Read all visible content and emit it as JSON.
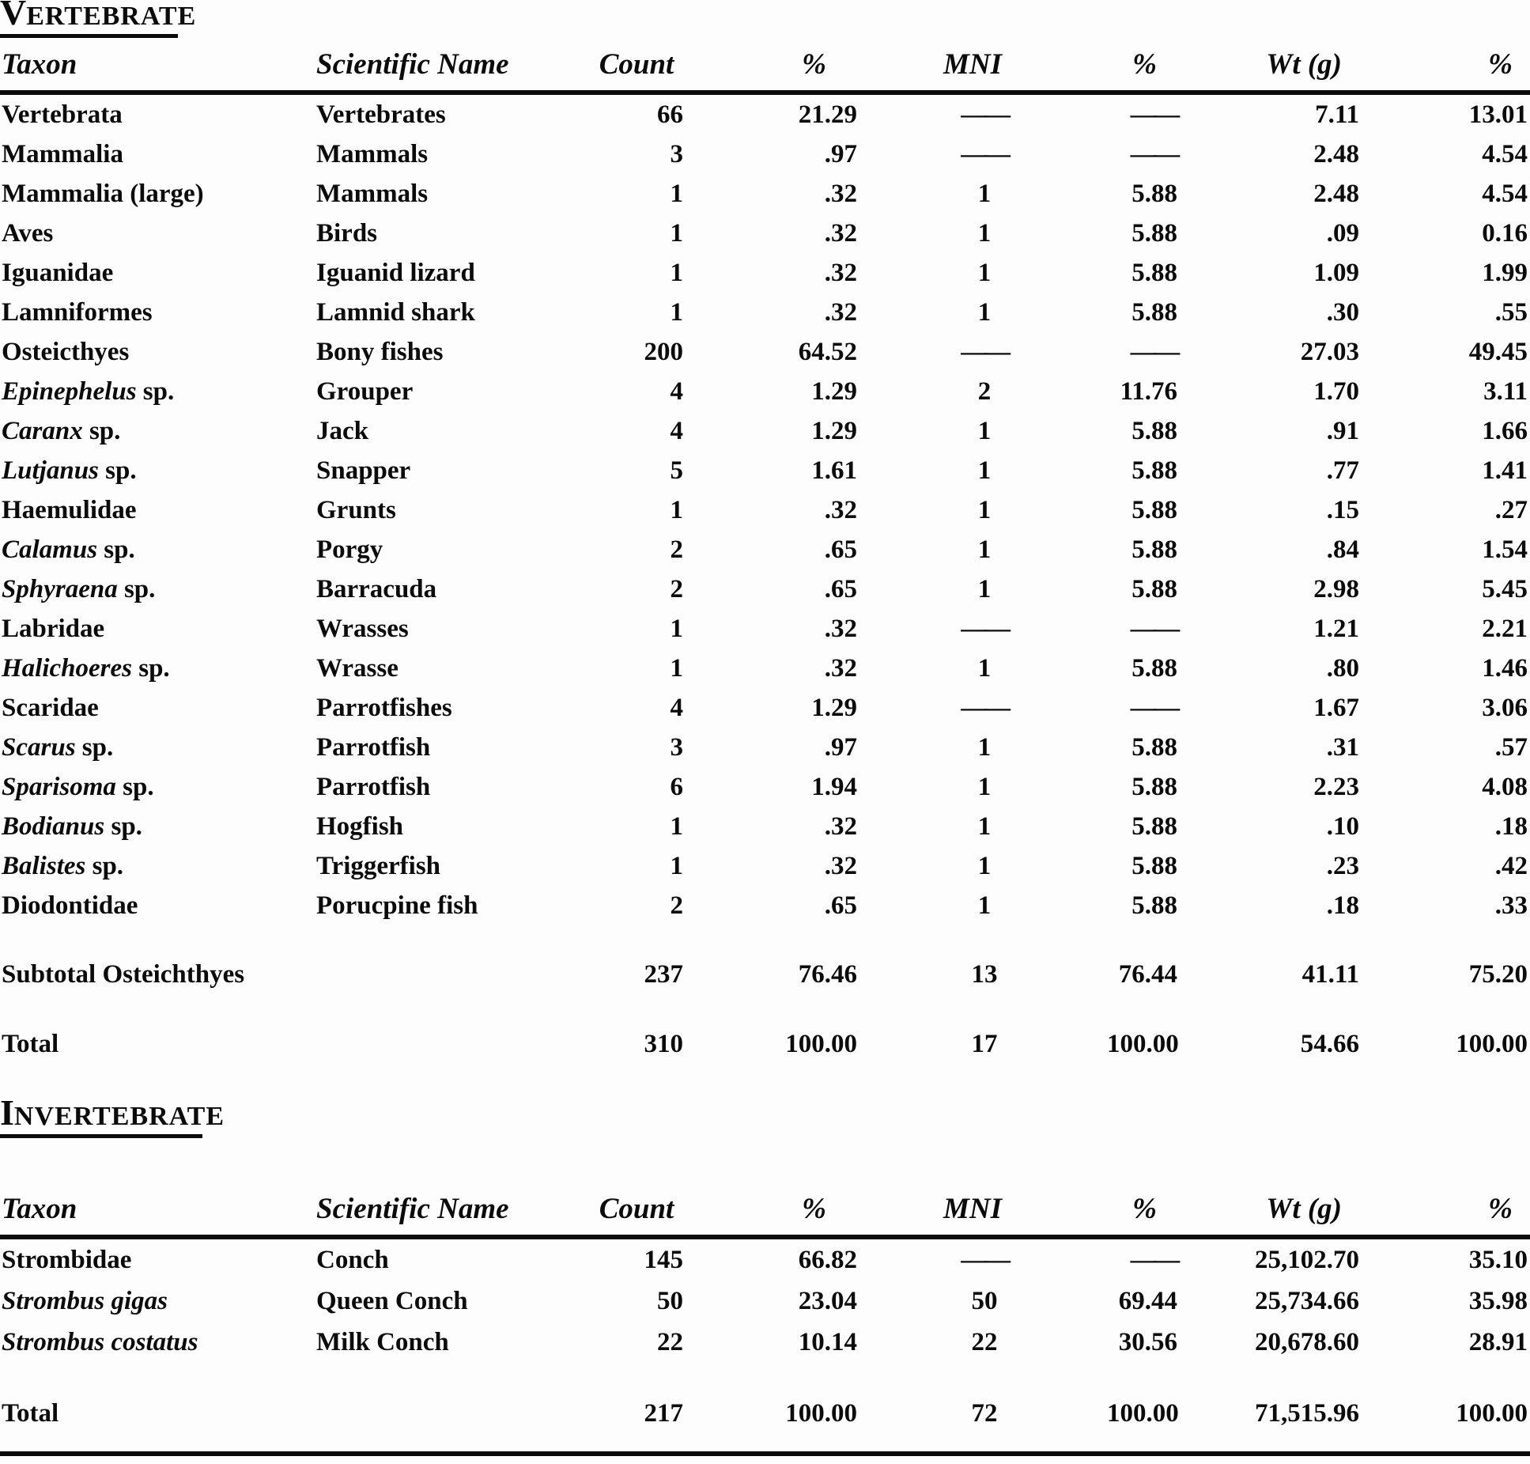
{
  "columns": [
    "Taxon",
    "Scientific Name",
    "Count",
    "%",
    "MNI",
    "%",
    "Wt (g)",
    "%"
  ],
  "vertebrate": {
    "title_first": "V",
    "title_rest": "ERTEBRATE",
    "rows": [
      {
        "taxon_i": "",
        "taxon_r": "Vertebrata",
        "sci": "Vertebrates",
        "count": "66",
        "pct_count": "21.29",
        "mni": "——",
        "pct_mni": "——",
        "wt": "7.11",
        "pct_wt": "13.01"
      },
      {
        "taxon_i": "",
        "taxon_r": "Mammalia",
        "sci": "Mammals",
        "count": "3",
        "pct_count": ".97",
        "mni": "——",
        "pct_mni": "——",
        "wt": "2.48",
        "pct_wt": "4.54"
      },
      {
        "taxon_i": "",
        "taxon_r": "Mammalia (large)",
        "sci": "Mammals",
        "count": "1",
        "pct_count": ".32",
        "mni": "1",
        "pct_mni": "5.88",
        "wt": "2.48",
        "pct_wt": "4.54"
      },
      {
        "taxon_i": "",
        "taxon_r": "Aves",
        "sci": "Birds",
        "count": "1",
        "pct_count": ".32",
        "mni": "1",
        "pct_mni": "5.88",
        "wt": ".09",
        "pct_wt": "0.16"
      },
      {
        "taxon_i": "",
        "taxon_r": "Iguanidae",
        "sci": "Iguanid lizard",
        "count": "1",
        "pct_count": ".32",
        "mni": "1",
        "pct_mni": "5.88",
        "wt": "1.09",
        "pct_wt": "1.99"
      },
      {
        "taxon_i": "",
        "taxon_r": "Lamniformes",
        "sci": "Lamnid shark",
        "count": "1",
        "pct_count": ".32",
        "mni": "1",
        "pct_mni": "5.88",
        "wt": ".30",
        "pct_wt": ".55"
      },
      {
        "taxon_i": "",
        "taxon_r": "Osteicthyes",
        "sci": "Bony fishes",
        "count": "200",
        "pct_count": "64.52",
        "mni": "——",
        "pct_mni": "——",
        "wt": "27.03",
        "pct_wt": "49.45"
      },
      {
        "taxon_i": "Epinephelus",
        "taxon_r": " sp.",
        "sci": "Grouper",
        "count": "4",
        "pct_count": "1.29",
        "mni": "2",
        "pct_mni": "11.76",
        "wt": "1.70",
        "pct_wt": "3.11"
      },
      {
        "taxon_i": "Caranx",
        "taxon_r": " sp.",
        "sci": "Jack",
        "count": "4",
        "pct_count": "1.29",
        "mni": "1",
        "pct_mni": "5.88",
        "wt": ".91",
        "pct_wt": "1.66"
      },
      {
        "taxon_i": "Lutjanus",
        "taxon_r": " sp.",
        "sci": "Snapper",
        "count": "5",
        "pct_count": "1.61",
        "mni": "1",
        "pct_mni": "5.88",
        "wt": ".77",
        "pct_wt": "1.41"
      },
      {
        "taxon_i": "",
        "taxon_r": "Haemulidae",
        "sci": "Grunts",
        "count": "1",
        "pct_count": ".32",
        "mni": "1",
        "pct_mni": "5.88",
        "wt": ".15",
        "pct_wt": ".27"
      },
      {
        "taxon_i": "Calamus",
        "taxon_r": " sp.",
        "sci": "Porgy",
        "count": "2",
        "pct_count": ".65",
        "mni": "1",
        "pct_mni": "5.88",
        "wt": ".84",
        "pct_wt": "1.54"
      },
      {
        "taxon_i": "Sphyraena",
        "taxon_r": " sp.",
        "sci": "Barracuda",
        "count": "2",
        "pct_count": ".65",
        "mni": "1",
        "pct_mni": "5.88",
        "wt": "2.98",
        "pct_wt": "5.45"
      },
      {
        "taxon_i": "",
        "taxon_r": "Labridae",
        "sci": "Wrasses",
        "count": "1",
        "pct_count": ".32",
        "mni": "——",
        "pct_mni": "——",
        "wt": "1.21",
        "pct_wt": "2.21"
      },
      {
        "taxon_i": "Halichoeres",
        "taxon_r": " sp.",
        "sci": "Wrasse",
        "count": "1",
        "pct_count": ".32",
        "mni": "1",
        "pct_mni": "5.88",
        "wt": ".80",
        "pct_wt": "1.46"
      },
      {
        "taxon_i": "",
        "taxon_r": "Scaridae",
        "sci": "Parrotfishes",
        "count": "4",
        "pct_count": "1.29",
        "mni": "——",
        "pct_mni": "——",
        "wt": "1.67",
        "pct_wt": "3.06"
      },
      {
        "taxon_i": "Scarus",
        "taxon_r": " sp.",
        "sci": "Parrotfish",
        "count": "3",
        "pct_count": ".97",
        "mni": "1",
        "pct_mni": "5.88",
        "wt": ".31",
        "pct_wt": ".57"
      },
      {
        "taxon_i": "Sparisoma",
        "taxon_r": " sp.",
        "sci": "Parrotfish",
        "count": "6",
        "pct_count": "1.94",
        "mni": "1",
        "pct_mni": "5.88",
        "wt": "2.23",
        "pct_wt": "4.08"
      },
      {
        "taxon_i": "Bodianus",
        "taxon_r": " sp.",
        "sci": "Hogfish",
        "count": "1",
        "pct_count": ".32",
        "mni": "1",
        "pct_mni": "5.88",
        "wt": ".10",
        "pct_wt": ".18"
      },
      {
        "taxon_i": "Balistes",
        "taxon_r": " sp.",
        "sci": "Triggerfish",
        "count": "1",
        "pct_count": ".32",
        "mni": "1",
        "pct_mni": "5.88",
        "wt": ".23",
        "pct_wt": ".42"
      },
      {
        "taxon_i": "",
        "taxon_r": "Diodontidae",
        "sci": "Porucpine fish",
        "count": "2",
        "pct_count": ".65",
        "mni": "1",
        "pct_mni": "5.88",
        "wt": ".18",
        "pct_wt": ".33"
      },
      {
        "taxon_i": "",
        "taxon_r": "Subtotal Osteichthyes",
        "sci": "",
        "count": "237",
        "pct_count": "76.46",
        "mni": "13",
        "pct_mni": "76.44",
        "wt": "41.11",
        "pct_wt": "75.20",
        "gap": true,
        "row_name": "subtotal-row"
      },
      {
        "taxon_i": "",
        "taxon_r": "Total",
        "sci": "",
        "count": "310",
        "pct_count": "100.00",
        "mni": "17",
        "pct_mni": "100.00",
        "wt": "54.66",
        "pct_wt": "100.00",
        "gap": true,
        "row_name": "total-row"
      }
    ]
  },
  "invertebrate": {
    "title_first": "I",
    "title_rest": "NVERTEBRATE",
    "rows": [
      {
        "taxon_i": "",
        "taxon_r": "Strombidae",
        "sci": "Conch",
        "count": "145",
        "pct_count": "66.82",
        "mni": "——",
        "pct_mni": "——",
        "wt": "25,102.70",
        "pct_wt": "35.10"
      },
      {
        "taxon_i": "Strombus gigas",
        "taxon_r": "",
        "sci": "Queen Conch",
        "count": "50",
        "pct_count": "23.04",
        "mni": "50",
        "pct_mni": "69.44",
        "wt": "25,734.66",
        "pct_wt": "35.98"
      },
      {
        "taxon_i": "Strombus costatus",
        "taxon_r": "",
        "sci": "Milk Conch",
        "count": "22",
        "pct_count": "10.14",
        "mni": "22",
        "pct_mni": "30.56",
        "wt": "20,678.60",
        "pct_wt": "28.91"
      },
      {
        "taxon_i": "",
        "taxon_r": "Total",
        "sci": "",
        "count": "217",
        "pct_count": "100.00",
        "mni": "72",
        "pct_mni": "100.00",
        "wt": "71,515.96",
        "pct_wt": "100.00",
        "gap": true,
        "row_name": "total-row"
      }
    ]
  }
}
